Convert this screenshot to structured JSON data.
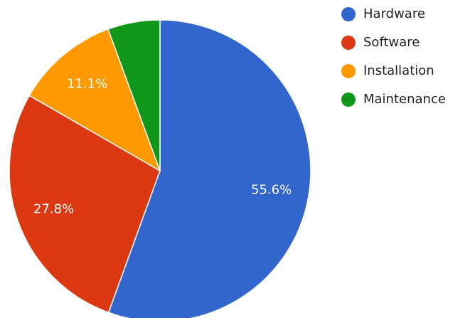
{
  "chart_data": {
    "type": "pie",
    "categories": [
      "Hardware",
      "Software",
      "Installation",
      "Maintenance"
    ],
    "values": [
      55.6,
      27.8,
      11.1,
      5.6
    ],
    "value_labels": [
      "55.6%",
      "27.8%",
      "11.1%",
      null
    ],
    "colors": [
      "#3366cc",
      "#dc3912",
      "#ff9900",
      "#109618"
    ],
    "legend": "right"
  }
}
